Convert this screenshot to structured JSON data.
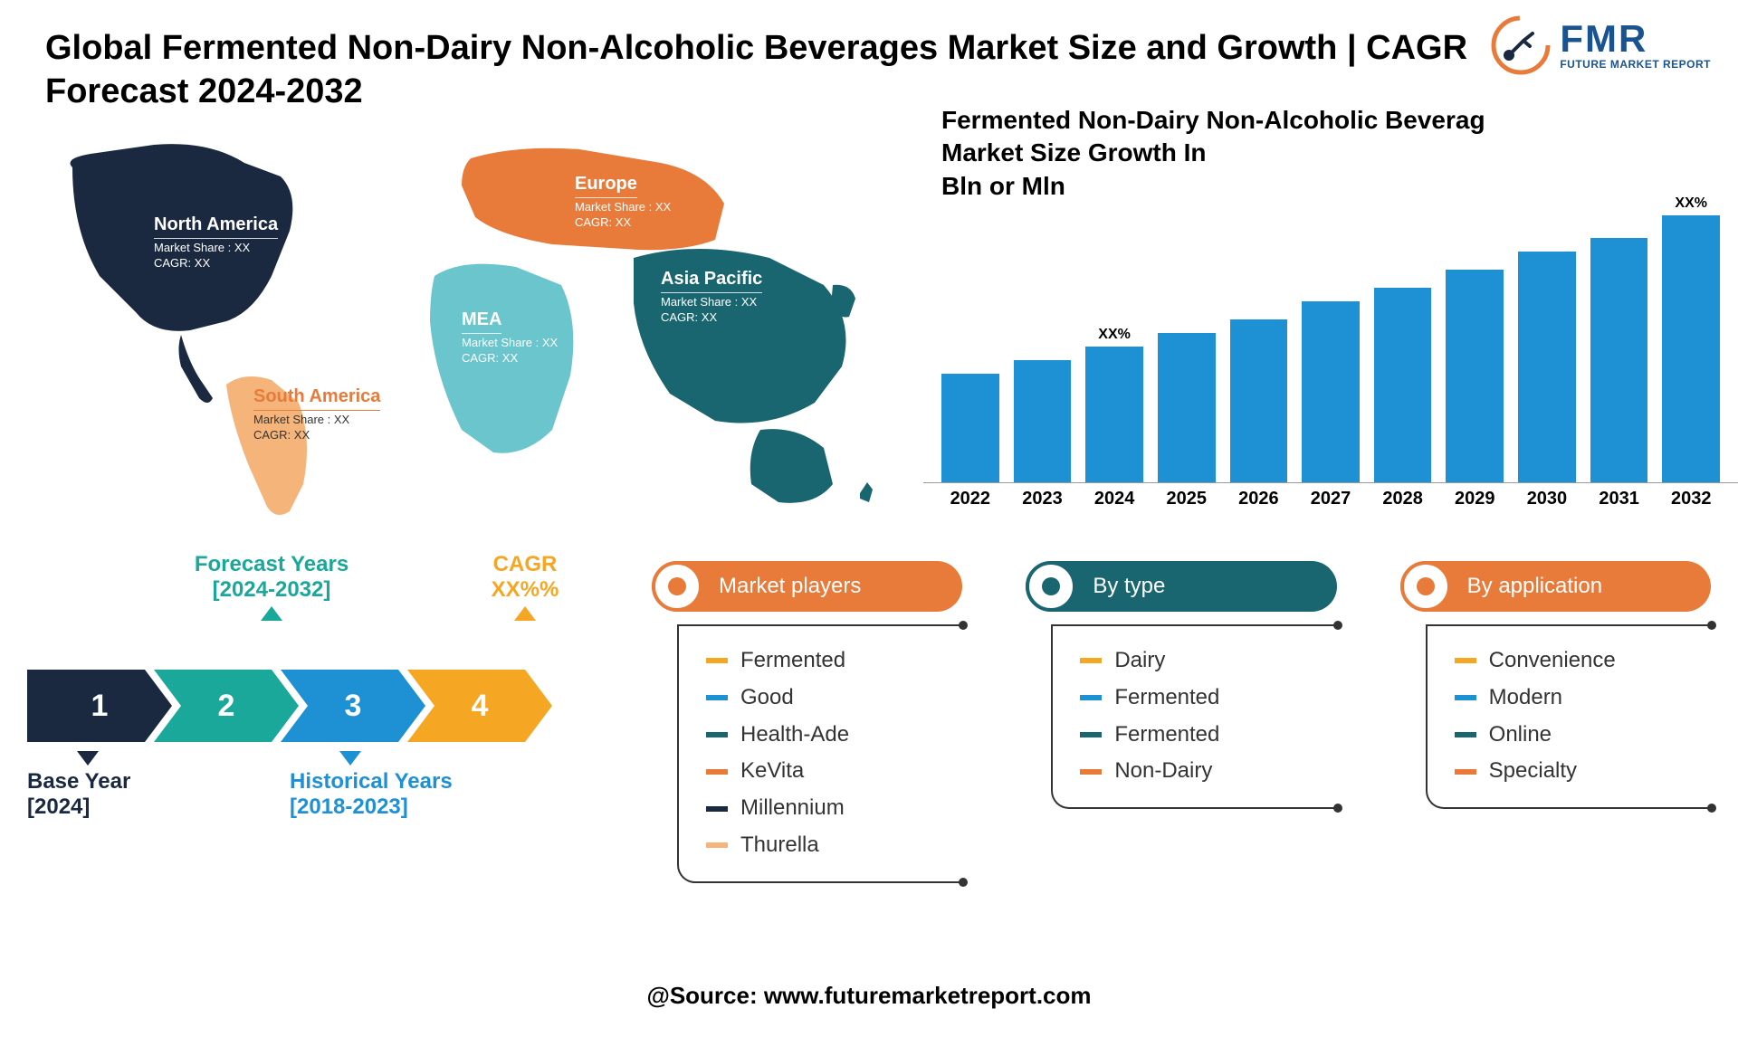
{
  "title": "Global Fermented Non-Dairy Non-Alcoholic Beverages Market Size and Growth | CAGR Forecast 2024-2032",
  "logo": {
    "fmr": "FMR",
    "sub": "FUTURE MARKET REPORT"
  },
  "map": {
    "regions": [
      {
        "id": "na",
        "name": "North America",
        "share": "Market Share : XX",
        "cagr": "CAGR: XX",
        "color": "#1a2940"
      },
      {
        "id": "sa",
        "name": "South America",
        "share": "Market Share : XX",
        "cagr": "CAGR: XX",
        "color": "#f5b57a"
      },
      {
        "id": "eu",
        "name": "Europe",
        "share": "Market Share : XX",
        "cagr": "CAGR: XX",
        "color": "#e87a3a"
      },
      {
        "id": "mea",
        "name": "MEA",
        "share": "Market Share : XX",
        "cagr": "CAGR: XX",
        "color": "#6bc5cc"
      },
      {
        "id": "ap",
        "name": "Asia Pacific",
        "share": "Market Share : XX",
        "cagr": "CAGR: XX",
        "color": "#1a6670"
      }
    ]
  },
  "chart": {
    "type": "bar",
    "title_l1": "Fermented Non-Dairy Non-Alcoholic Beverag",
    "title_l2": "Market Size Growth In",
    "title_l3": "Bln or Mln",
    "title_fontsize": 28,
    "bar_color": "#1e90d4",
    "background_color": "#ffffff",
    "ylim": [
      0,
      300
    ],
    "categories": [
      "2022",
      "2023",
      "2024",
      "2025",
      "2026",
      "2027",
      "2028",
      "2029",
      "2030",
      "2031",
      "2032"
    ],
    "values": [
      120,
      135,
      150,
      165,
      180,
      200,
      215,
      235,
      255,
      270,
      295
    ],
    "annotations": [
      {
        "index": 2,
        "text": "XX%"
      },
      {
        "index": 10,
        "text": "XX%"
      }
    ],
    "label_fontsize": 20
  },
  "timeline": {
    "forecast": {
      "label": "Forecast Years",
      "range": "[2024-2032]",
      "color": "#1aa89a"
    },
    "cagr": {
      "label": "CAGR",
      "value": "XX%%",
      "color": "#f5a623"
    },
    "base": {
      "label": "Base Year",
      "range": "[2024]",
      "color": "#1a2940"
    },
    "historical": {
      "label": "Historical Years",
      "range": "[2018-2023]",
      "color": "#1e90d4"
    },
    "steps": [
      {
        "num": "1",
        "color": "#1a2940"
      },
      {
        "num": "2",
        "color": "#1aa89a"
      },
      {
        "num": "3",
        "color": "#1e90d4"
      },
      {
        "num": "4",
        "color": "#f5a623"
      }
    ]
  },
  "categories": [
    {
      "title": "Market players",
      "pill_color": "#e87a3a",
      "items": [
        {
          "label": "Fermented",
          "swatch": "#f5a623"
        },
        {
          "label": "Good",
          "swatch": "#1e90d4"
        },
        {
          "label": "Health-Ade",
          "swatch": "#1a6670"
        },
        {
          "label": "KeVita",
          "swatch": "#e87a3a"
        },
        {
          "label": "Millennium",
          "swatch": "#1a2940"
        },
        {
          "label": "Thurella",
          "swatch": "#f5b57a"
        }
      ]
    },
    {
      "title": "By type",
      "pill_color": "#1a6670",
      "items": [
        {
          "label": "Dairy",
          "swatch": "#f5a623"
        },
        {
          "label": "Fermented",
          "swatch": "#1e90d4"
        },
        {
          "label": "Fermented",
          "swatch": "#1a6670"
        },
        {
          "label": "Non-Dairy",
          "swatch": "#e87a3a"
        }
      ]
    },
    {
      "title": "By application",
      "pill_color": "#e87a3a",
      "items": [
        {
          "label": "Convenience",
          "swatch": "#f5a623"
        },
        {
          "label": "Modern",
          "swatch": "#1e90d4"
        },
        {
          "label": "Online",
          "swatch": "#1a6670"
        },
        {
          "label": "Specialty",
          "swatch": "#e87a3a"
        }
      ]
    }
  ],
  "source": "@Source: www.futuremarketreport.com"
}
